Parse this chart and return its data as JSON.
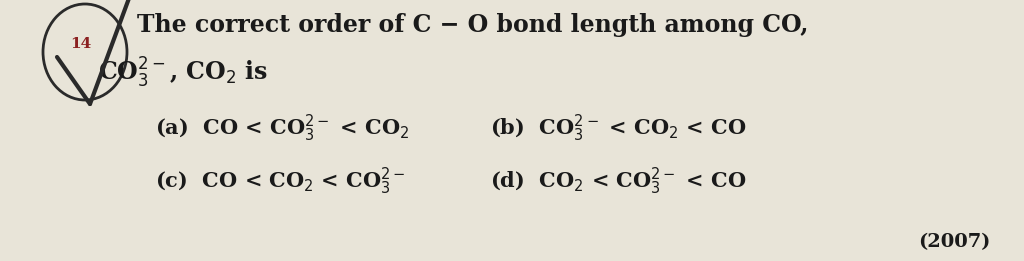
{
  "background_color": "#e8e4d8",
  "question_number": "14",
  "q_number_color": "#8b2020",
  "title_line1": "The correct order of C − O bond length among CO,",
  "title_line2": "CO$_3^{2-}$, CO$_2$ is",
  "options": {
    "a": "(a)  CO < CO$_3^{2-}$ < CO$_2$",
    "b": "(b)  CO$_3^{2-}$ < CO$_2$ < CO",
    "c": "(c)  CO < CO$_2$ < CO$_3^{2-}$",
    "d": "(d)  CO$_2$ < CO$_3^{2-}$ < CO"
  },
  "year": "(2007)",
  "text_color": "#1a1a1a",
  "circle_color": "#2a2a2a",
  "font_size_title": 17,
  "font_size_options": 15,
  "font_size_year": 14,
  "font_size_qnum": 11
}
